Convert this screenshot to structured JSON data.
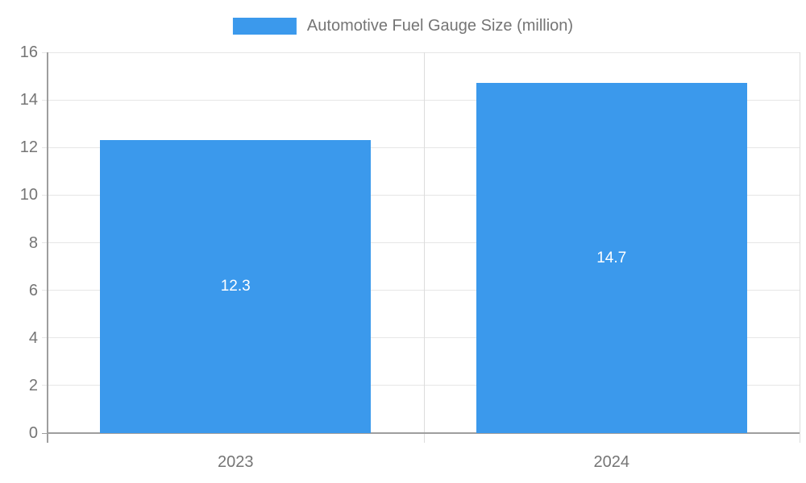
{
  "legend": {
    "label": "Automotive Fuel Gauge Size (million)"
  },
  "colors": {
    "bar": "#3B99EC",
    "text": "#757575",
    "grid": "#e6e6e6",
    "category_line": "#dcdcdc",
    "axis": "#9e9e9e",
    "value_label": "#ffffff",
    "background": "#ffffff"
  },
  "chart_data": {
    "type": "bar",
    "title": "Automotive Fuel Gauge Size (million)",
    "categories": [
      "2023",
      "2024"
    ],
    "values": [
      12.3,
      14.7
    ],
    "value_labels": [
      "12.3",
      "14.7"
    ],
    "xlabel": "",
    "ylabel": "",
    "ylim": [
      0,
      16
    ],
    "yticks": [
      0,
      2,
      4,
      6,
      8,
      10,
      12,
      14,
      16
    ],
    "grid": true,
    "legend_position": "top-center",
    "bar_label_position": "inside-center"
  }
}
